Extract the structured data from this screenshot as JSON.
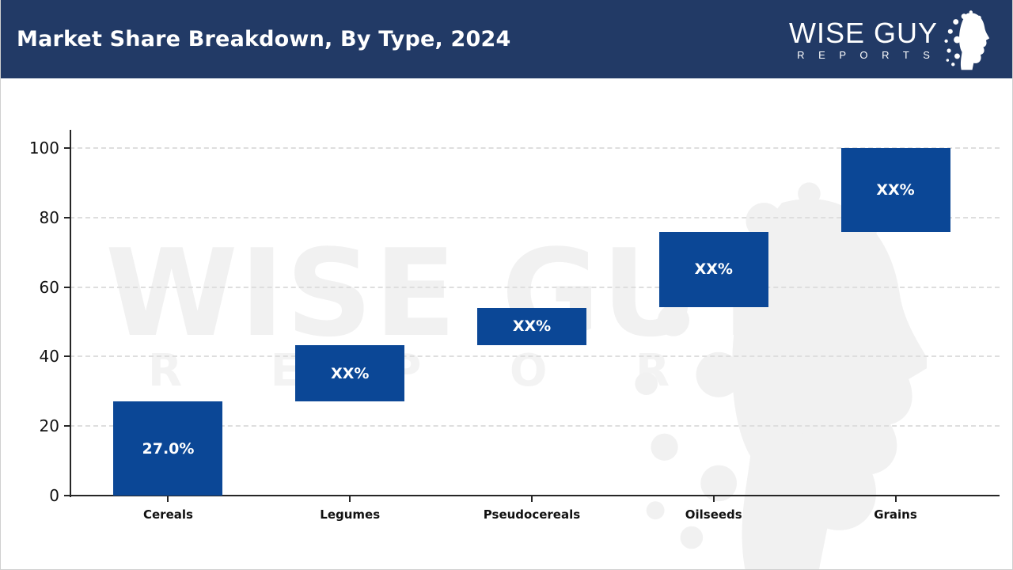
{
  "header": {
    "title": "Market Share Breakdown, By Type, 2024",
    "logo": {
      "line1": "WISE GUY",
      "line2": "R E P O R T S"
    }
  },
  "watermark": {
    "line1": "WISE GUY",
    "line2": "R E P O R T S"
  },
  "chart_data": {
    "type": "bar",
    "subtype": "waterfall-floating-bars",
    "title": "Market Share Breakdown, By Type, 2024",
    "categories": [
      "Cereals",
      "Legumes",
      "Pseudocereals",
      "Oilseeds",
      "Grains"
    ],
    "series": [
      {
        "name": "Market share (%)",
        "segments": [
          {
            "category": "Cereals",
            "start": 0,
            "end": 27.0,
            "label": "27.0%"
          },
          {
            "category": "Legumes",
            "start": 27.0,
            "end": 43.3,
            "label": "XX%"
          },
          {
            "category": "Pseudocereals",
            "start": 43.3,
            "end": 54.0,
            "label": "XX%"
          },
          {
            "category": "Oilseeds",
            "start": 54.2,
            "end": 75.9,
            "label": "XX%"
          },
          {
            "category": "Grains",
            "start": 75.9,
            "end": 100.0,
            "label": "XX%"
          }
        ]
      }
    ],
    "yticks": [
      0,
      20,
      40,
      60,
      80,
      100
    ],
    "ylim": [
      0,
      105
    ],
    "xlabel": "",
    "ylabel": "",
    "grid": "horizontal-dashed",
    "legend": "none",
    "colors": {
      "bar": "#0b4796",
      "bar_label": "#ffffff",
      "grid": "#dedede",
      "axis": "#262626",
      "tick_label": "#111111"
    }
  },
  "colors": {
    "header_bg": "#223a66",
    "page_bg": "#ffffff",
    "watermark": "#f1f1f1"
  }
}
